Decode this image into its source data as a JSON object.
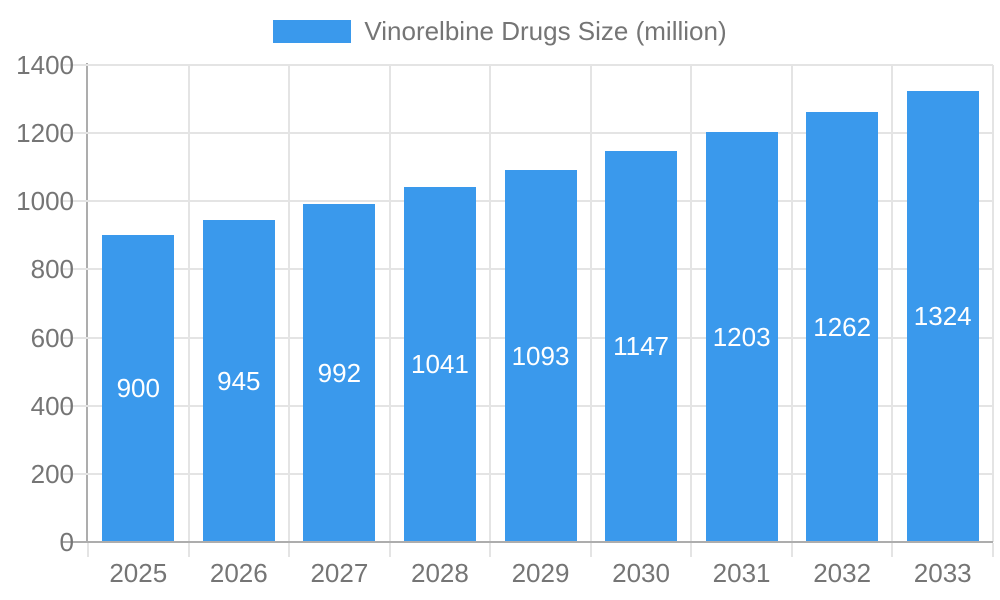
{
  "chart_data": {
    "type": "bar",
    "title": "Vinorelbine Drugs Size (million)",
    "legend_entries": [
      "Vinorelbine Drugs Size (million)"
    ],
    "legend_position": "top-center",
    "categories": [
      "2025",
      "2026",
      "2027",
      "2028",
      "2029",
      "2030",
      "2031",
      "2032",
      "2033"
    ],
    "values": [
      900,
      945,
      992,
      1041,
      1093,
      1147,
      1203,
      1262,
      1324
    ],
    "bar_labels": [
      "900",
      "945",
      "992",
      "1041",
      "1093",
      "1147",
      "1203",
      "1262",
      "1324"
    ],
    "xlabel": "",
    "ylabel": "",
    "ylim": [
      0,
      1400
    ],
    "ytick_step": 200,
    "ytick_labels": [
      "0",
      "200",
      "400",
      "600",
      "800",
      "1000",
      "1200",
      "1400"
    ],
    "grid": true,
    "colors": {
      "bar": "#3A99EC",
      "bar_label": "#FFFFFF",
      "axis_text": "#757575",
      "legend_text": "#757575",
      "axis_line": "#ADADAD",
      "grid_line": "#E4E4E4",
      "background": "#FFFFFF"
    }
  }
}
